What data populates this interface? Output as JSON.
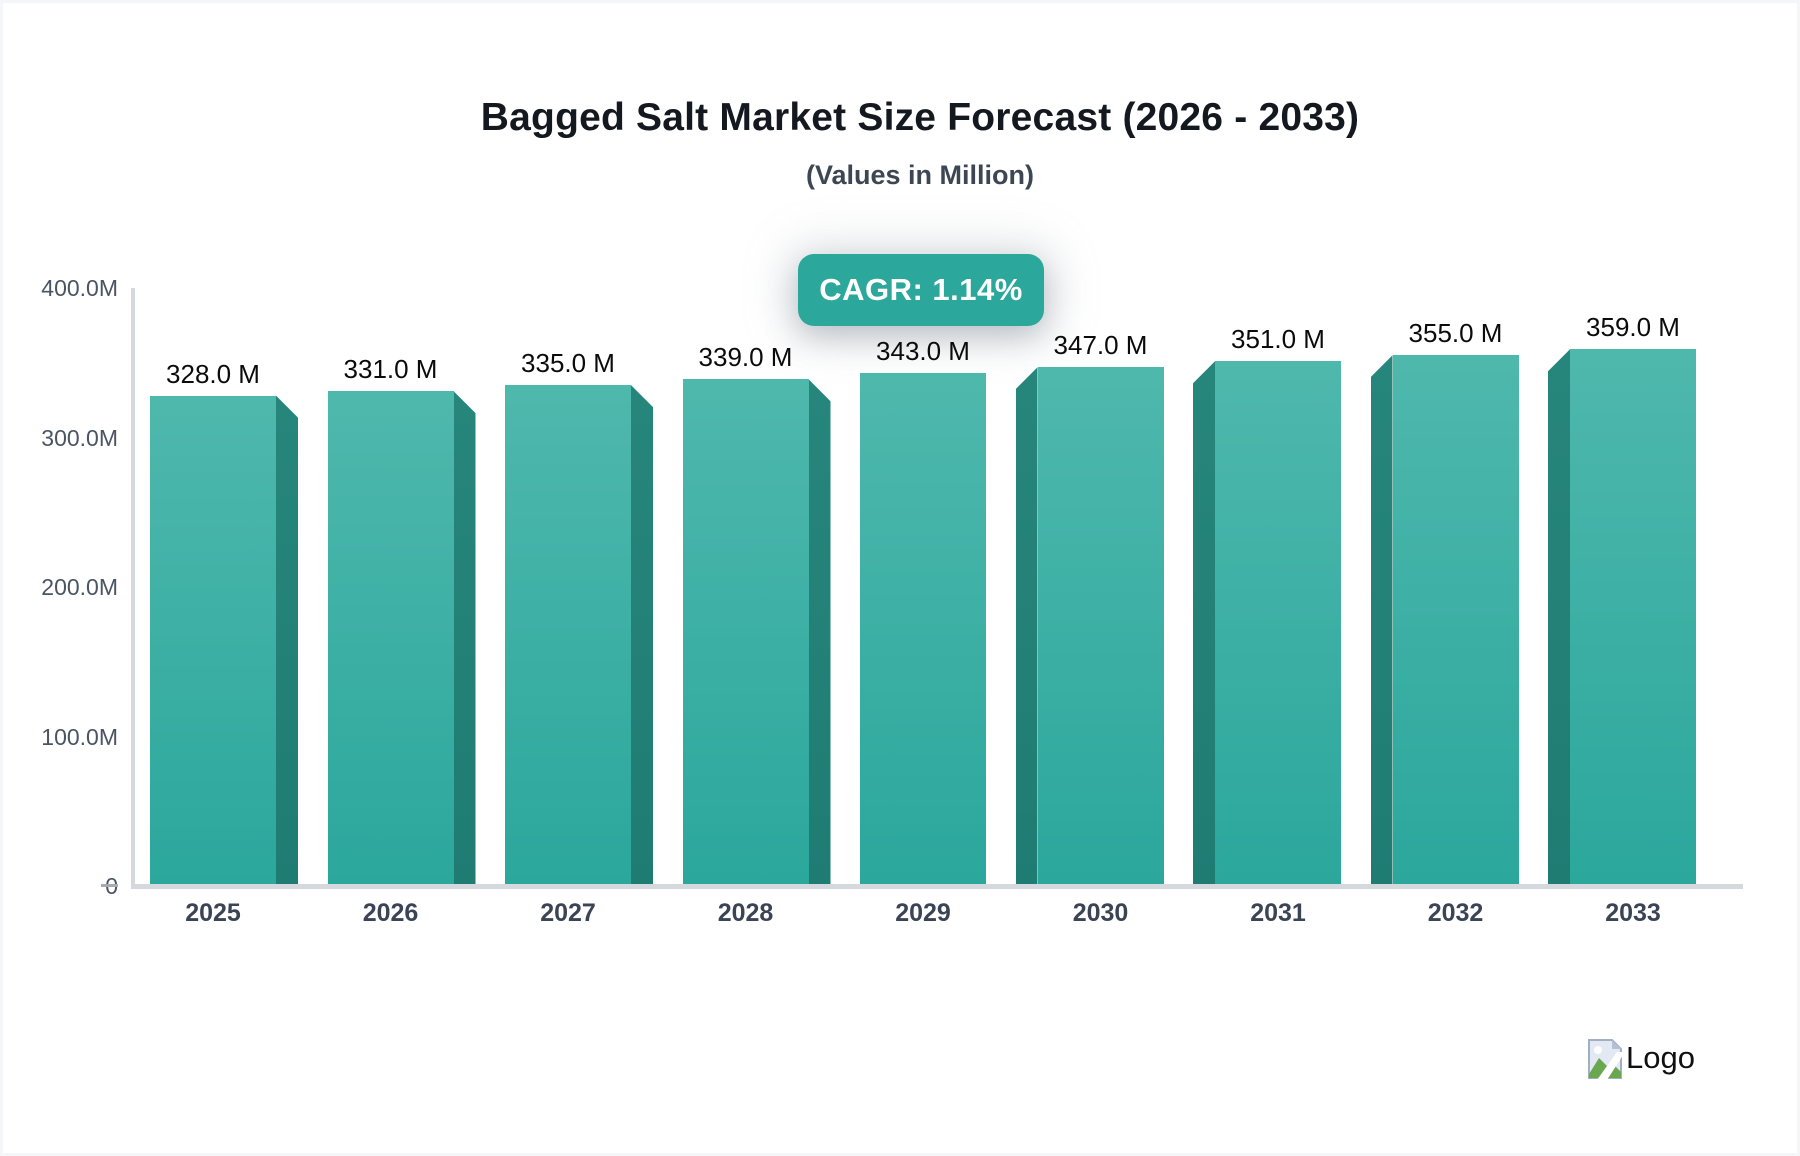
{
  "header": {
    "title": "Bagged Salt Market Size Forecast (2026 - 2033)",
    "subtitle": "(Values in Million)"
  },
  "badge": {
    "label": "CAGR: 1.14%",
    "bg_color": "#2ba79b",
    "text_color": "#ffffff"
  },
  "chart_data": {
    "type": "bar",
    "title": "Bagged Salt Market Size Forecast (2026 - 2033)",
    "subtitle": "(Values in Million)",
    "unit": "Million",
    "categories": [
      "2025",
      "2026",
      "2027",
      "2028",
      "2029",
      "2030",
      "2031",
      "2032",
      "2033"
    ],
    "values": [
      328,
      331,
      335,
      339,
      343,
      347,
      351,
      355,
      359
    ],
    "value_labels": [
      "328.0 M",
      "331.0 M",
      "335.0 M",
      "339.0 M",
      "343.0 M",
      "347.0 M",
      "351.0 M",
      "355.0 M",
      "359.0 M"
    ],
    "y_ticks": [
      {
        "label": "400.0M",
        "value": 400
      },
      {
        "label": "300.0M",
        "value": 300
      },
      {
        "label": "200.0M",
        "value": 200
      },
      {
        "label": "100.0M",
        "value": 100
      },
      {
        "label": "0",
        "value": 0
      }
    ],
    "ylim": [
      0,
      400
    ],
    "grid": false,
    "legend": "none",
    "colors": {
      "bar_face_top": "#4fb8ad",
      "bar_face_bottom": "#2ba79c",
      "bar_side": "#1f7c73",
      "axis": "#d5d8dd",
      "y_tick_text": "#4a5563",
      "x_tick_text": "#3a4454",
      "value_label_text": "#0b0b0b"
    }
  },
  "logo": {
    "text": "Logo",
    "icon": "broken-image-icon"
  }
}
